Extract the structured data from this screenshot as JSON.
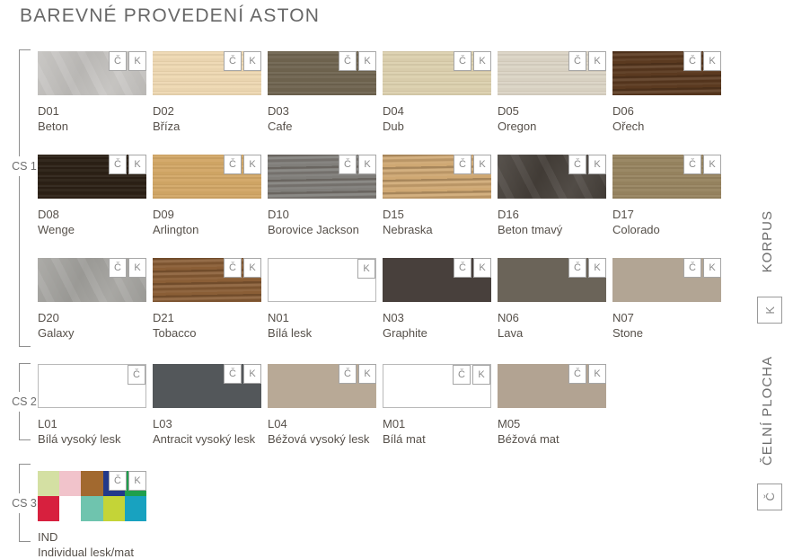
{
  "title": "BAREVNÉ PROVEDENÍ ASTON",
  "groups": [
    {
      "label": "CS 1"
    },
    {
      "label": "CS 2"
    },
    {
      "label": "CS 3"
    }
  ],
  "legend": {
    "korpus_label": "KORPUS",
    "korpus_key": "K",
    "front_label": "ČELNÍ PLOCHA",
    "front_key": "Č"
  },
  "badge_colors": {
    "background": "#ffffff",
    "border": "#a6a6a6",
    "letter": "#8a8a8a"
  },
  "rows": [
    {
      "swatches": [
        {
          "code": "D01",
          "name": "Beton",
          "color": "#c7c5c2",
          "texture": "concrete",
          "badges": [
            "Č",
            "K"
          ]
        },
        {
          "code": "D02",
          "name": "Bříza",
          "color": "#eed8b2",
          "texture": "wood",
          "badges": [
            "Č",
            "K"
          ]
        },
        {
          "code": "D03",
          "name": "Cafe",
          "color": "#6f6450",
          "texture": "wood",
          "badges": [
            "Č",
            "K"
          ]
        },
        {
          "code": "D04",
          "name": "Dub",
          "color": "#dcd0ae",
          "texture": "wood",
          "badges": [
            "Č",
            "K"
          ]
        },
        {
          "code": "D05",
          "name": "Oregon",
          "color": "#dbd4c5",
          "texture": "wood",
          "badges": [
            "Č",
            "K"
          ]
        },
        {
          "code": "D06",
          "name": "Ořech",
          "color": "#5b3a20",
          "texture": "wood-strong",
          "badges": [
            "Č",
            "K"
          ]
        }
      ]
    },
    {
      "swatches": [
        {
          "code": "D08",
          "name": "Wenge",
          "color": "#2b2015",
          "texture": "wood",
          "badges": [
            "Č",
            "K"
          ]
        },
        {
          "code": "D09",
          "name": "Arlington",
          "color": "#d2a766",
          "texture": "wood",
          "badges": [
            "Č",
            "K"
          ]
        },
        {
          "code": "D10",
          "name": "Borovice Jackson",
          "color": "#807e7a",
          "texture": "wood-strong",
          "badges": [
            "Č",
            "K"
          ]
        },
        {
          "code": "D15",
          "name": "Nebraska",
          "color": "#cfa873",
          "texture": "wood-strong",
          "badges": [
            "Č",
            "K"
          ]
        },
        {
          "code": "D16",
          "name": "Beton tmavý",
          "color": "#46403a",
          "texture": "concrete",
          "badges": [
            "Č",
            "K"
          ]
        },
        {
          "code": "D17",
          "name": "Colorado",
          "color": "#978460",
          "texture": "wood",
          "badges": [
            "Č",
            "K"
          ]
        }
      ]
    },
    {
      "swatches": [
        {
          "code": "D20",
          "name": "Galaxy",
          "color": "#a6a5a1",
          "texture": "concrete",
          "badges": [
            "Č",
            "K"
          ]
        },
        {
          "code": "D21",
          "name": "Tobacco",
          "color": "#8a5e36",
          "texture": "wood-strong",
          "badges": [
            "Č",
            "K"
          ]
        },
        {
          "code": "N01",
          "name": "Bílá lesk",
          "color": "#ffffff",
          "texture": "white",
          "badges": [
            "K"
          ]
        },
        {
          "code": "N03",
          "name": "Graphite",
          "color": "#48403c",
          "texture": "plain",
          "badges": [
            "Č",
            "K"
          ]
        },
        {
          "code": "N06",
          "name": "Lava",
          "color": "#6b6459",
          "texture": "plain",
          "badges": [
            "Č",
            "K"
          ]
        },
        {
          "code": "N07",
          "name": "Stone",
          "color": "#b2a594",
          "texture": "plain",
          "badges": [
            "Č",
            "K"
          ]
        }
      ]
    },
    {
      "swatches": [
        {
          "code": "L01",
          "name": "Bílá vysoký lesk",
          "color": "#ffffff",
          "texture": "white",
          "badges": [
            "Č"
          ]
        },
        {
          "code": "L03",
          "name": "Antracit vysoký lesk",
          "color": "#53575a",
          "texture": "plain",
          "badges": [
            "Č",
            "K"
          ]
        },
        {
          "code": "L04",
          "name": "Béžová vysoký lesk",
          "color": "#b8a996",
          "texture": "plain",
          "badges": [
            "Č",
            "K"
          ]
        },
        {
          "code": "M01",
          "name": "Bílá mat",
          "color": "#ffffff",
          "texture": "white",
          "badges": [
            "Č",
            "K"
          ]
        },
        {
          "code": "M05",
          "name": "Béžová mat",
          "color": "#b2a392",
          "texture": "plain",
          "badges": [
            "Č",
            "K"
          ]
        }
      ]
    },
    {
      "swatches": [
        {
          "code": "IND",
          "name": "Individual lesk/mat",
          "texture": "patchwork",
          "badges": [
            "Č",
            "K"
          ],
          "cells": [
            [
              "#d4e0a3",
              "#f1c3cb",
              "#a2692f",
              "#22398a",
              "#1f9f4d"
            ],
            [
              "#d7203e",
              "#ffffff",
              "#6fc4ae",
              "#c4d437",
              "#18a2c0"
            ]
          ]
        }
      ]
    }
  ]
}
